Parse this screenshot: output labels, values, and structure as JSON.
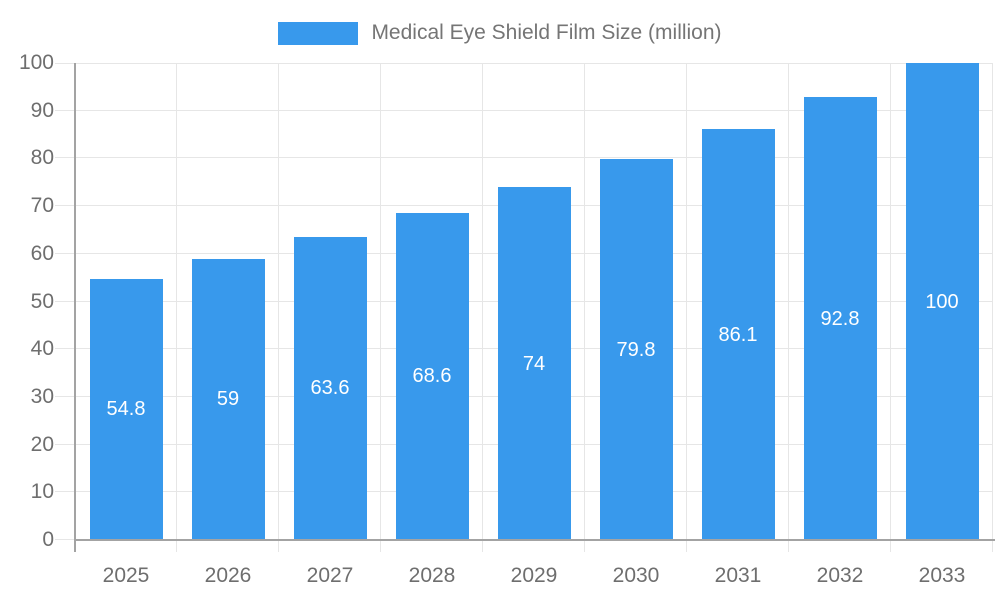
{
  "chart_data": {
    "type": "bar",
    "title": "Medical Eye Shield Film Size (million)",
    "categories": [
      "2025",
      "2026",
      "2027",
      "2028",
      "2029",
      "2030",
      "2031",
      "2032",
      "2033"
    ],
    "values": [
      54.8,
      59,
      63.6,
      68.6,
      74,
      79.8,
      86.1,
      92.8,
      100
    ],
    "series_name": "Medical Eye Shield Film Size (million)",
    "xlabel": "",
    "ylabel": "",
    "ylim": [
      0,
      100
    ],
    "ytick_step": 10,
    "ytick_labels": [
      "0",
      "10",
      "20",
      "30",
      "40",
      "50",
      "60",
      "70",
      "80",
      "90",
      "100"
    ],
    "grid": true,
    "legend_position": "top",
    "bar_labels_visible": true
  },
  "colors": {
    "bar": "#3899ec",
    "bar_label": "#ffffff",
    "axis_line": "#a3a3a3",
    "grid_line": "#e6e6e6",
    "axis_label": "#6e6e6e",
    "legend_text": "#757575",
    "background": "#ffffff"
  }
}
